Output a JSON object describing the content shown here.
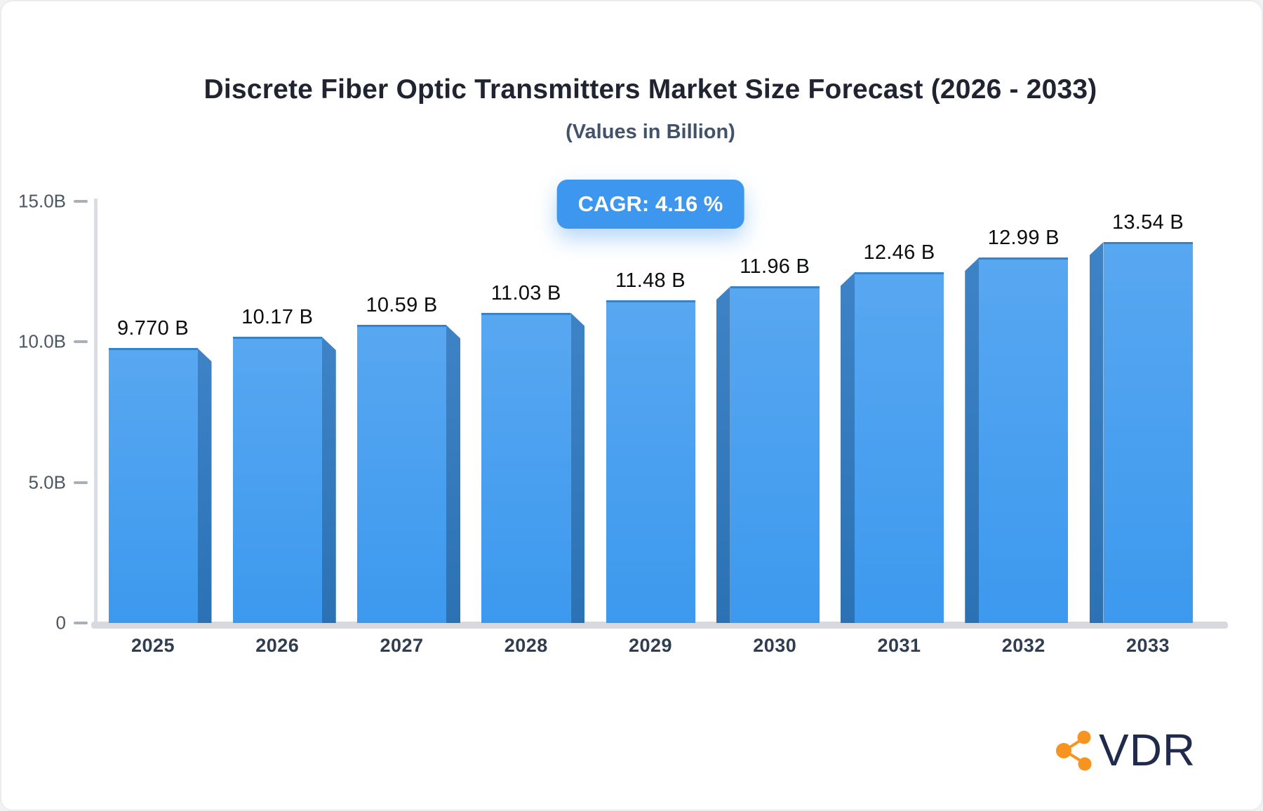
{
  "header": {
    "title": "Discrete Fiber Optic Transmitters Market Size Forecast (2026 - 2033)",
    "subtitle": "(Values in Billion)",
    "cagr_badge": "CAGR: 4.16 %"
  },
  "chart_data": {
    "type": "bar",
    "title": "Discrete Fiber Optic Transmitters Market Size Forecast (2026 - 2033)",
    "subtitle": "(Values in Billion)",
    "annotation": "CAGR: 4.16 %",
    "categories": [
      "2025",
      "2026",
      "2027",
      "2028",
      "2029",
      "2030",
      "2031",
      "2032",
      "2033"
    ],
    "values": [
      9.77,
      10.17,
      10.59,
      11.03,
      11.48,
      11.96,
      12.46,
      12.99,
      13.54
    ],
    "value_labels": [
      "9.770 B",
      "10.17 B",
      "10.59 B",
      "11.03 B",
      "11.48 B",
      "11.96 B",
      "12.46 B",
      "12.99 B",
      "13.54 B"
    ],
    "ylim": [
      0,
      15
    ],
    "yticks": [
      {
        "value": 15,
        "label": "15.0B"
      },
      {
        "value": 10,
        "label": "10.0B"
      },
      {
        "value": 5,
        "label": "5.0B"
      },
      {
        "value": 0,
        "label": "0"
      }
    ],
    "grid": false,
    "legend": false,
    "bar_style": "3d-perspective"
  },
  "branding": {
    "logo_text": "VDR",
    "logo_icon": "share-network-icon"
  },
  "colors": {
    "bar_face_top": "#58a7f1",
    "bar_face_bottom": "#3c99ee",
    "bar_side_top": "#3d83c5",
    "bar_side_bottom": "#2b72b4",
    "badge_bg": "#3e97ee",
    "badge_text": "#ffffff",
    "title_text": "#1f2430",
    "subtitle_text": "#42526b",
    "axis_line": "#dadce1",
    "baseline": "#d7d9de",
    "tick_text": "#4b5663",
    "category_text": "#2f3d4f",
    "value_text": "#0b0d0f",
    "logo_text_color": "#202a4c",
    "logo_icon_color": "#f6941f"
  }
}
